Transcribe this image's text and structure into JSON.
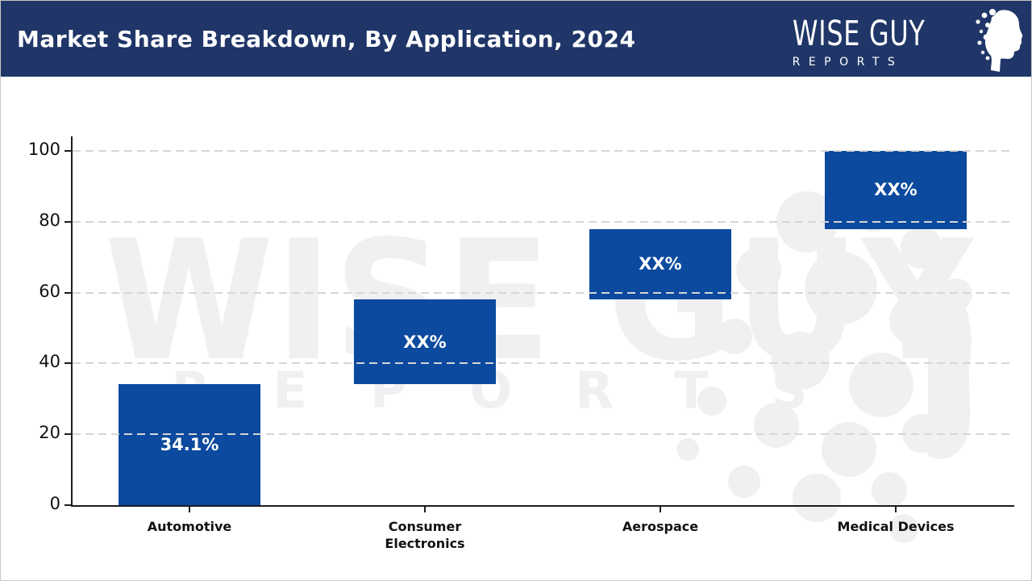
{
  "header": {
    "title": "Market Share Breakdown, By Application, 2024",
    "bg_color": "#203668",
    "logo": {
      "line1": "WISE GUY",
      "line2": "REPORTS"
    }
  },
  "watermark": {
    "line1": "WISE GUY",
    "line2": "REPORTS",
    "color": "#f0f0f2"
  },
  "chart_data": {
    "type": "bar",
    "variant": "waterfall",
    "title": "Market Share Breakdown, By Application, 2024",
    "categories": [
      "Automotive",
      "Consumer Electronics",
      "Aerospace",
      "Medical Devices"
    ],
    "segments": [
      {
        "category": "Automotive",
        "start": 0,
        "end": 34.1,
        "label": "34.1%"
      },
      {
        "category": "Consumer Electronics",
        "start": 34.1,
        "end": 58,
        "label": "XX%"
      },
      {
        "category": "Aerospace",
        "start": 58,
        "end": 78,
        "label": "XX%"
      },
      {
        "category": "Medical Devices",
        "start": 78,
        "end": 100,
        "label": "XX%"
      }
    ],
    "yticks": [
      0,
      20,
      40,
      60,
      80,
      100
    ],
    "ylim": [
      0,
      104
    ],
    "xlabel": "",
    "ylabel": "",
    "grid": "horizontal-dashed",
    "grid_color": "#d6d6d6",
    "legend": "none",
    "bar_color": "#0b4a9e",
    "label_color": "#ffffff",
    "axis_color": "#1c1c1c"
  }
}
